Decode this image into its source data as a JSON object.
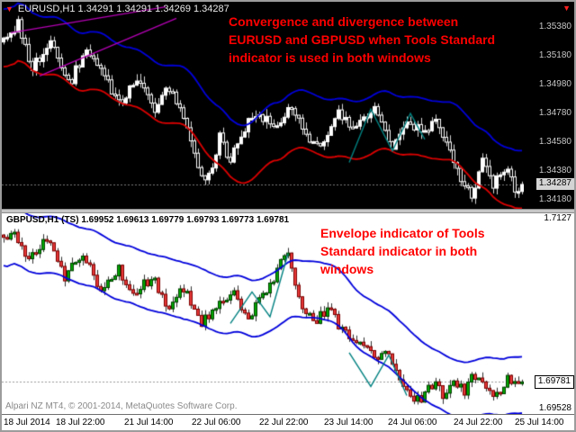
{
  "frame": {
    "border_color": "#9c9c9c"
  },
  "footer_text": "Alpari NZ MT4, © 2001-2014, MetaQuotes Software Corp.",
  "time_axis": {
    "labels": [
      "18 Jul 2014",
      "18 Jul 22:00",
      "21 Jul 14:00",
      "22 Jul 06:00",
      "22 Jul 22:00",
      "23 Jul 14:00",
      "24 Jul 06:00",
      "24 Jul 22:00",
      "25 Jul 14:00"
    ]
  },
  "chart_data": [
    {
      "type": "candlestick",
      "symbol": "EURUSD",
      "timeframe": "H1",
      "title_text": "EURUSD,H1  1.34291 1.34291 1.34269 1.34287",
      "ohlc": {
        "open": 1.34291,
        "high": 1.34291,
        "low": 1.34269,
        "close": 1.34287
      },
      "annotation_lines": [
        "Convergence and divergence between",
        "EURUSD and GBPUSD when Tools Standard",
        "indicator is used in both windows"
      ],
      "annotation_color": "#ff0000",
      "ylim": [
        1.34118,
        1.35555
      ],
      "yticks": [
        "1.35380",
        "1.35180",
        "1.34980",
        "1.34780",
        "1.34580",
        "1.34380",
        "1.34180"
      ],
      "current_price": 1.34287,
      "current_price_label": "1.34287",
      "bars": 145,
      "noise": 0.0008,
      "wick": 0.0005,
      "seed": 7,
      "pivots": [
        [
          0,
          1.3528
        ],
        [
          4,
          1.354
        ],
        [
          8,
          1.351
        ],
        [
          13,
          1.3526
        ],
        [
          18,
          1.3498
        ],
        [
          23,
          1.3521
        ],
        [
          27,
          1.3509
        ],
        [
          32,
          1.3486
        ],
        [
          37,
          1.35
        ],
        [
          42,
          1.348
        ],
        [
          46,
          1.3496
        ],
        [
          50,
          1.3478
        ],
        [
          53,
          1.3452
        ],
        [
          56,
          1.3428
        ],
        [
          58,
          1.3444
        ],
        [
          60,
          1.3461
        ],
        [
          63,
          1.3446
        ],
        [
          66,
          1.3463
        ],
        [
          70,
          1.3479
        ],
        [
          75,
          1.3469
        ],
        [
          80,
          1.3481
        ],
        [
          84,
          1.3463
        ],
        [
          88,
          1.3453
        ],
        [
          93,
          1.3477
        ],
        [
          98,
          1.3467
        ],
        [
          103,
          1.3481
        ],
        [
          108,
          1.3455
        ],
        [
          112,
          1.3472
        ],
        [
          116,
          1.3465
        ],
        [
          120,
          1.347
        ],
        [
          124,
          1.3452
        ],
        [
          127,
          1.343
        ],
        [
          130,
          1.3421
        ],
        [
          133,
          1.3447
        ],
        [
          136,
          1.3428
        ],
        [
          139,
          1.344
        ],
        [
          142,
          1.3426
        ],
        [
          144,
          1.3429
        ]
      ],
      "envelope": {
        "period": 16,
        "offset": 0.002,
        "upper_color": "#0000dc",
        "lower_color": "#dc0000"
      },
      "colors": {
        "background": "#000000",
        "up": "#ffffff",
        "down": "#000000",
        "up_border": "#ffffff",
        "down_border": "#ffffff",
        "wick": "#d8d8d8",
        "price_line": "#7a7a7a",
        "tick_text": "#c6c6c6"
      },
      "trendlines": [
        {
          "color": "#b400b4",
          "points": [
            [
              2,
              1.3534
            ],
            [
              45,
              1.3552
            ]
          ]
        },
        {
          "color": "#b400b4",
          "points": [
            [
              10,
              1.3504
            ],
            [
              48,
              1.3544
            ]
          ]
        },
        {
          "color": "#008080",
          "points": [
            [
              96,
              1.3444
            ],
            [
              102,
              1.3481
            ],
            [
              108,
              1.3452
            ],
            [
              113,
              1.3478
            ],
            [
              117,
              1.346
            ]
          ]
        }
      ]
    },
    {
      "type": "candlestick",
      "symbol": "GBPUSD",
      "timeframe": "H1",
      "title_text": "GBPUSD,H1 (TS)  1.69952 1.69613 1.69779 1.69793 1.69773 1.69781",
      "annotation_lines": [
        "Envelope indicator of Tools",
        "Standard indicator in both",
        "windows"
      ],
      "annotation_color": "#ff0000",
      "ylim": [
        1.69496,
        1.71278
      ],
      "yticks": [
        "1.7127",
        "1.69528"
      ],
      "current_price": 1.69781,
      "current_price_label": "1.69781",
      "bars": 145,
      "noise": 0.001,
      "wick": 0.0005,
      "seed": 13,
      "pivots": [
        [
          0,
          1.7108
        ],
        [
          3,
          1.7113
        ],
        [
          7,
          1.7084
        ],
        [
          12,
          1.7104
        ],
        [
          17,
          1.7072
        ],
        [
          22,
          1.7092
        ],
        [
          27,
          1.706
        ],
        [
          32,
          1.708
        ],
        [
          36,
          1.7052
        ],
        [
          41,
          1.7072
        ],
        [
          46,
          1.7044
        ],
        [
          50,
          1.706
        ],
        [
          55,
          1.7032
        ],
        [
          60,
          1.7048
        ],
        [
          64,
          1.7056
        ],
        [
          68,
          1.7036
        ],
        [
          72,
          1.7052
        ],
        [
          76,
          1.7078
        ],
        [
          79,
          1.7094
        ],
        [
          82,
          1.7052
        ],
        [
          86,
          1.7032
        ],
        [
          90,
          1.7044
        ],
        [
          95,
          1.702
        ],
        [
          100,
          1.7008
        ],
        [
          104,
          1.6996
        ],
        [
          107,
          1.7004
        ],
        [
          110,
          1.6984
        ],
        [
          113,
          1.6968
        ],
        [
          116,
          1.696
        ],
        [
          119,
          1.6976
        ],
        [
          122,
          1.6968
        ],
        [
          125,
          1.6982
        ],
        [
          128,
          1.6971
        ],
        [
          131,
          1.6985
        ],
        [
          134,
          1.6974
        ],
        [
          137,
          1.6968
        ],
        [
          140,
          1.698
        ],
        [
          144,
          1.6978
        ]
      ],
      "envelope": {
        "period": 18,
        "offset": 0.0025,
        "upper_color": "#0000dc",
        "lower_color": "#0000dc"
      },
      "colors": {
        "background": "#ffffff",
        "up": "#00a800",
        "down": "#e83838",
        "up_border": "#004000",
        "down_border": "#7c0000",
        "wick": "#303030",
        "price_line": "#999999",
        "tick_text": "#000000"
      },
      "trendlines": [
        {
          "color": "#008080",
          "points": [
            [
              63,
              1.703
            ],
            [
              69,
              1.7058
            ],
            [
              74,
              1.7036
            ],
            [
              79,
              1.7092
            ]
          ]
        },
        {
          "color": "#008080",
          "points": [
            [
              96,
              1.7004
            ],
            [
              102,
              1.6974
            ],
            [
              107,
              1.7002
            ],
            [
              112,
              1.6966
            ]
          ]
        }
      ]
    }
  ]
}
